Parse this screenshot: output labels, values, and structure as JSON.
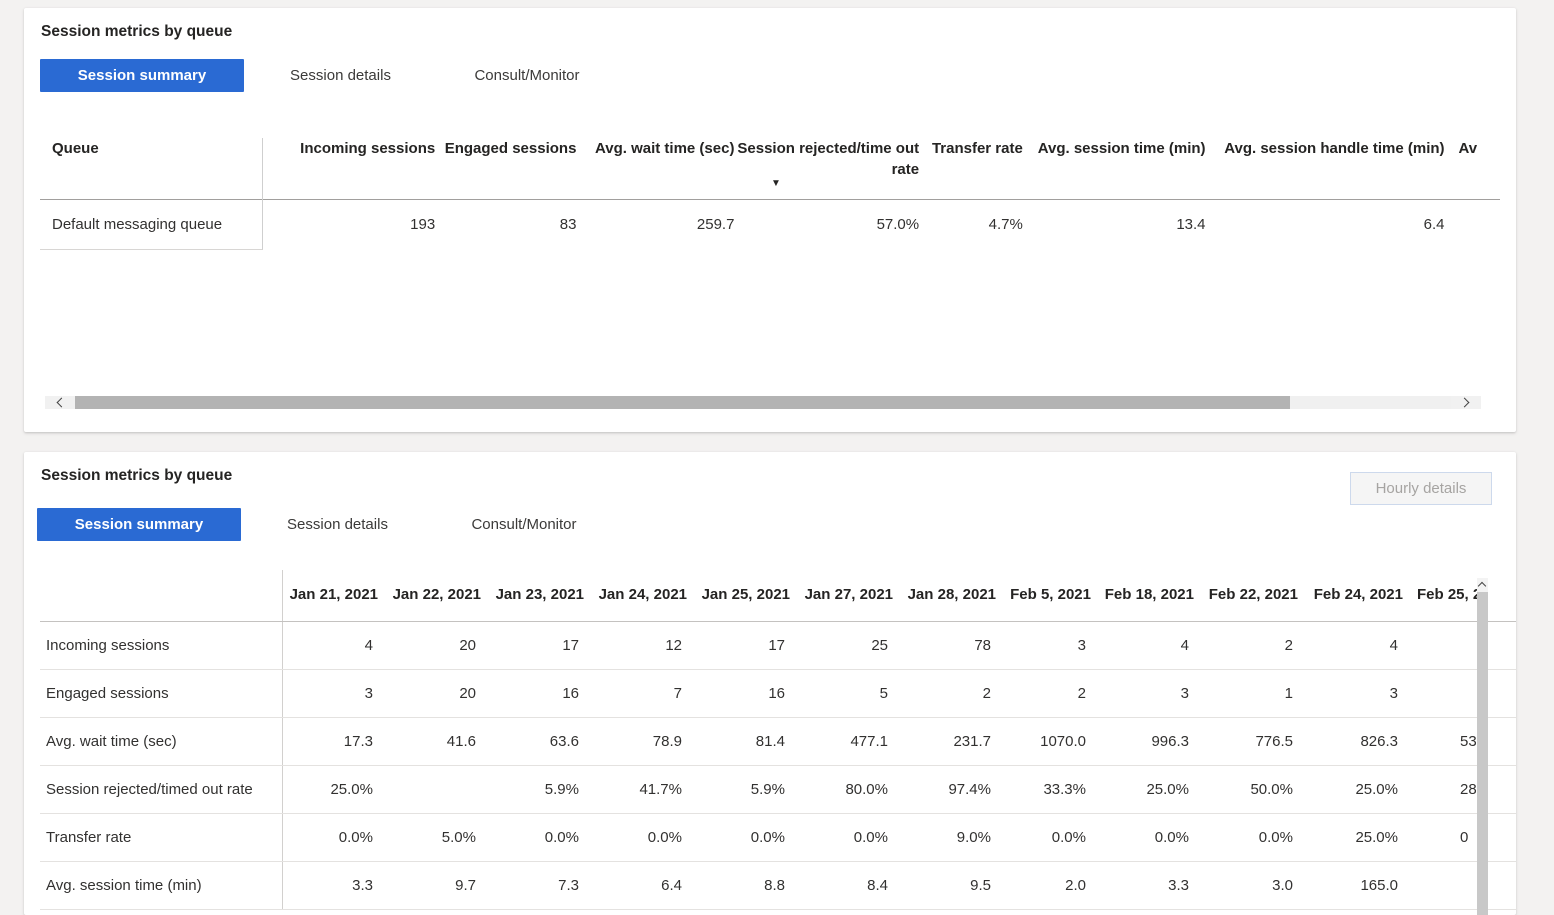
{
  "colors": {
    "accent_blue": "#2a6ad3",
    "page_background": "#f3f2f1",
    "panel_background": "#ffffff",
    "disabled_button_text": "#a6a4a2"
  },
  "icons": {
    "sort_descending": "sort-descending-icon",
    "chevron_left": "chevron-left-icon",
    "chevron_right": "chevron-right-icon",
    "chevron_up": "chevron-up-icon"
  },
  "top_panel": {
    "title": "Session metrics by queue",
    "tabs": [
      {
        "label": "Session summary",
        "active": true
      },
      {
        "label": "Session details",
        "active": false
      },
      {
        "label": "Consult/Monitor",
        "active": false
      }
    ],
    "table": {
      "columns": [
        "Queue",
        "Incoming sessions",
        "Engaged sessions",
        "Avg. wait time (sec)",
        "Session rejected/time out rate",
        "Transfer rate",
        "Avg. session time (min)",
        "Avg. session handle time (min)",
        "Av"
      ],
      "sort_icon": "▼",
      "rows": [
        {
          "queue": "Default messaging queue",
          "values": [
            "193",
            "83",
            "259.7",
            "57.0%",
            "4.7%",
            "13.4",
            "6.4",
            ""
          ]
        }
      ]
    }
  },
  "bottom_panel": {
    "title": "Session metrics by queue",
    "hourly_details_button": "Hourly details",
    "tabs": [
      {
        "label": "Session summary",
        "active": true
      },
      {
        "label": "Session details",
        "active": false
      },
      {
        "label": "Consult/Monitor",
        "active": false
      }
    ],
    "matrix": {
      "date_columns": [
        "Jan 21, 2021",
        "Jan 22, 2021",
        "Jan 23, 2021",
        "Jan 24, 2021",
        "Jan 25, 2021",
        "Jan 27, 2021",
        "Jan 28, 2021",
        "Feb 5, 2021",
        "Feb 18, 2021",
        "Feb 22, 2021",
        "Feb 24, 2021",
        "Feb 25, 2"
      ],
      "rows": [
        {
          "label": "Incoming sessions",
          "values": [
            "4",
            "20",
            "17",
            "12",
            "17",
            "25",
            "78",
            "3",
            "4",
            "2",
            "4",
            ""
          ]
        },
        {
          "label": "Engaged sessions",
          "values": [
            "3",
            "20",
            "16",
            "7",
            "16",
            "5",
            "2",
            "2",
            "3",
            "1",
            "3",
            ""
          ]
        },
        {
          "label": "Avg. wait time (sec)",
          "values": [
            "17.3",
            "41.6",
            "63.6",
            "78.9",
            "81.4",
            "477.1",
            "231.7",
            "1070.0",
            "996.3",
            "776.5",
            "826.3",
            "53"
          ]
        },
        {
          "label": "Session rejected/timed out rate",
          "values": [
            "25.0%",
            "",
            "5.9%",
            "41.7%",
            "5.9%",
            "80.0%",
            "97.4%",
            "33.3%",
            "25.0%",
            "50.0%",
            "25.0%",
            "28"
          ]
        },
        {
          "label": "Transfer rate",
          "values": [
            "0.0%",
            "5.0%",
            "0.0%",
            "0.0%",
            "0.0%",
            "0.0%",
            "9.0%",
            "0.0%",
            "0.0%",
            "0.0%",
            "25.0%",
            "0"
          ]
        },
        {
          "label": "Avg. session time (min)",
          "values": [
            "3.3",
            "9.7",
            "7.3",
            "6.4",
            "8.8",
            "8.4",
            "9.5",
            "2.0",
            "3.3",
            "3.0",
            "165.0",
            ""
          ]
        }
      ]
    }
  }
}
